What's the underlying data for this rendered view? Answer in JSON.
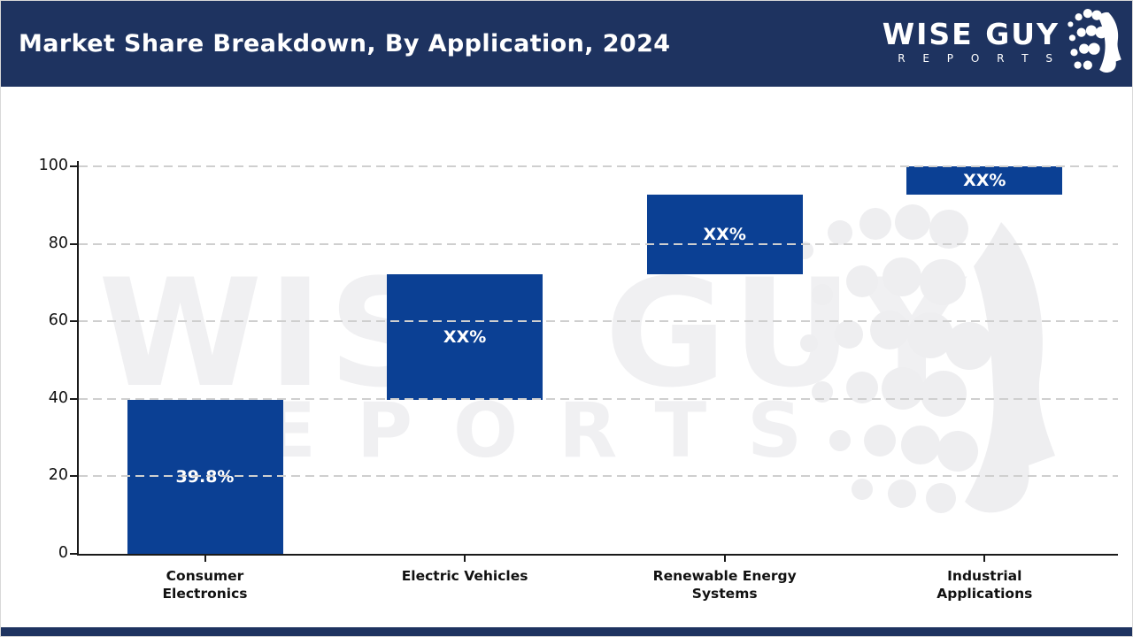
{
  "header": {
    "title": "Market Share Breakdown, By Application, 2024",
    "bg_color": "#1e3360",
    "logo": {
      "name": "WISE GUY",
      "sub": "R E P O R T S"
    }
  },
  "watermark": {
    "line1": "WISE GUY",
    "line2": "REPORTS"
  },
  "chart_data": {
    "type": "bar",
    "subtype": "waterfall",
    "title": "Market Share Breakdown, By Application, 2024",
    "categories": [
      "Consumer\nElectronics",
      "Electric Vehicles",
      "Renewable Energy\nSystems",
      "Industrial\nApplications"
    ],
    "series": [
      {
        "name": "Market Share %",
        "starts": [
          0,
          39.8,
          72.1,
          92.7
        ],
        "ends": [
          39.8,
          72.1,
          92.7,
          100
        ],
        "deltas": [
          39.8,
          32.3,
          20.6,
          7.3
        ]
      }
    ],
    "bar_labels": [
      "39.8%",
      "XX%",
      "XX%",
      "XX%"
    ],
    "bar_color": "#0b4094",
    "label_color": "#ffffff",
    "yticks": [
      0,
      20,
      40,
      60,
      80,
      100
    ],
    "ylim": [
      0,
      105
    ],
    "xlabel": "",
    "ylabel": "",
    "grid": "horizontal-dashed",
    "legend": "none"
  }
}
